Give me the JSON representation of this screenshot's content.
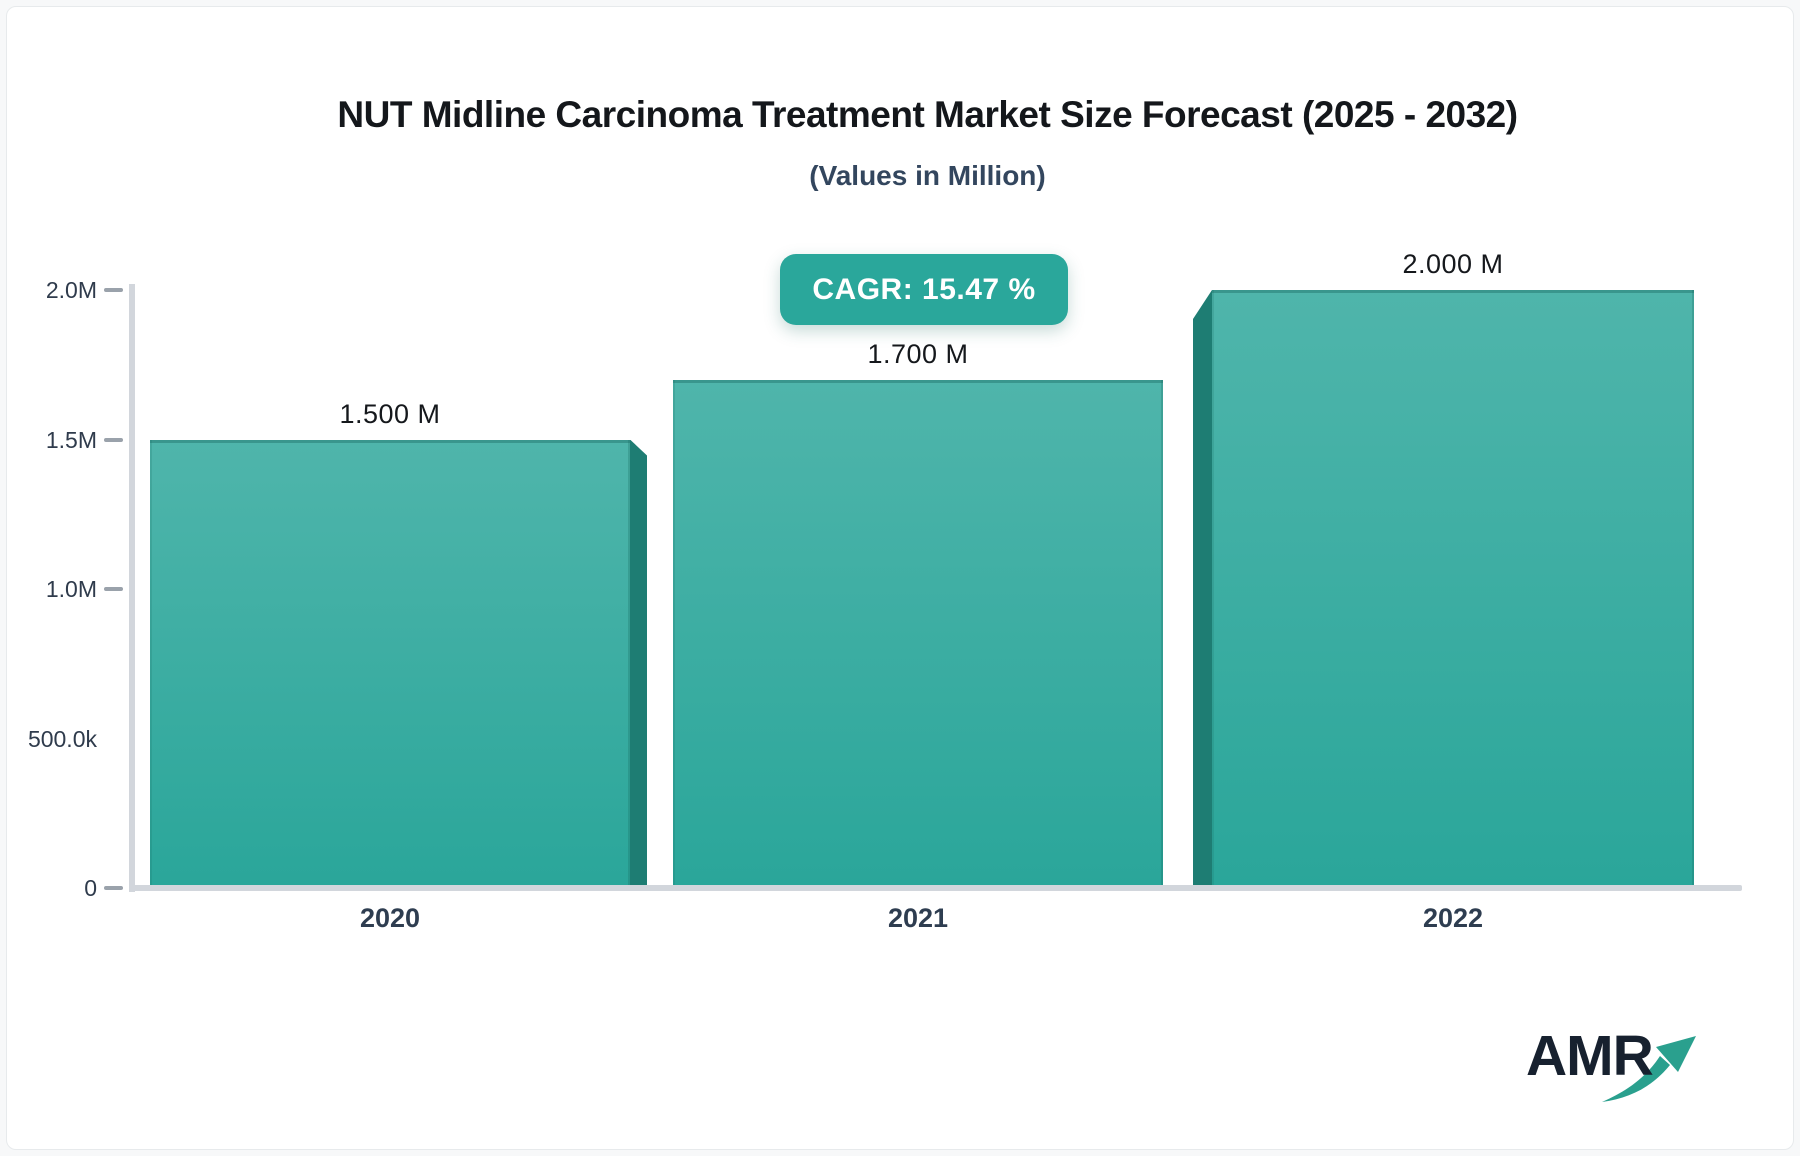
{
  "header": {
    "title": "NUT Midline Carcinoma Treatment Market Size Forecast (2025 - 2032)",
    "subtitle": "(Values in Million)"
  },
  "cagr": {
    "label": "CAGR: 15.47 %"
  },
  "chart_data": {
    "type": "bar",
    "title": "NUT Midline Carcinoma Treatment Market Size Forecast (2025 - 2032)",
    "subtitle": "(Values in Million)",
    "categories": [
      "2020",
      "2021",
      "2022"
    ],
    "values": [
      1500000,
      1700000,
      2000000
    ],
    "value_labels": [
      "1.500 M",
      "1.700 M",
      "2.000 M"
    ],
    "annotation": "CAGR: 15.47 %",
    "xlabel": "",
    "ylabel": "",
    "ylim": [
      0,
      2000000
    ],
    "y_ticks": [
      {
        "label": "0",
        "value": 0
      },
      {
        "label": "500.0k",
        "value": 500000
      },
      {
        "label": "1.0M",
        "value": 1000000
      },
      {
        "label": "1.5M",
        "value": 1500000
      },
      {
        "label": "2.0M",
        "value": 2000000
      }
    ],
    "grid": false,
    "legend": "none"
  },
  "logo": {
    "text": "AMR",
    "arrow_icon": "trend-up-arrow-icon"
  },
  "colors": {
    "bar_top": "#4fb5ab",
    "bar_bottom": "#2aa69a",
    "bar_side": "#1e7d73",
    "badge_bg": "#2aa79b",
    "axis": "#d2d6dc",
    "tick_text": "#2f3b4c",
    "title_text": "#14171b",
    "subtitle_text": "#33465e",
    "logo_navy": "#17212f",
    "logo_teal": "#2aa08e"
  }
}
